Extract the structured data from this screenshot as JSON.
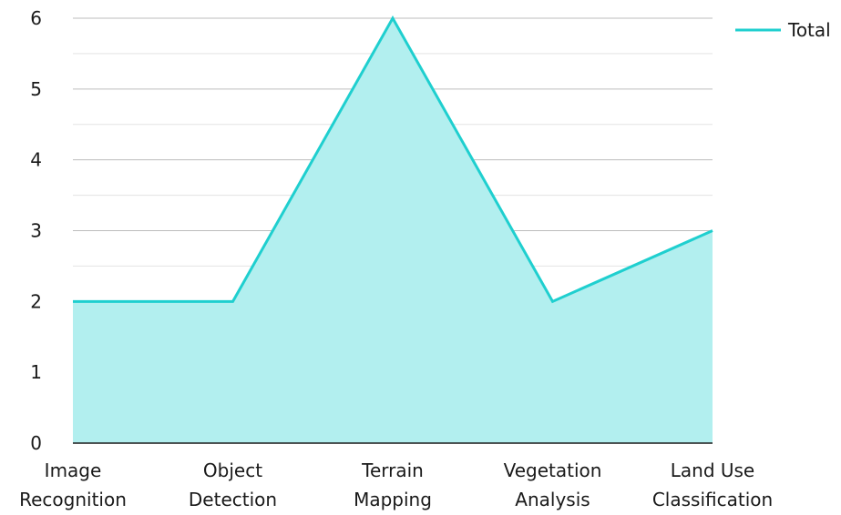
{
  "chart_data": {
    "type": "area",
    "categories": [
      [
        "Image",
        "Recognition"
      ],
      [
        "Object",
        "Detection"
      ],
      [
        "Terrain",
        "Mapping"
      ],
      [
        "Vegetation",
        "Analysis"
      ],
      [
        "Land Use",
        "Classification"
      ]
    ],
    "series": [
      {
        "name": "Total",
        "values": [
          2,
          2,
          6,
          2,
          3
        ]
      }
    ],
    "ylim": [
      0,
      6
    ],
    "yticks": [
      0,
      1,
      2,
      3,
      4,
      5,
      6
    ],
    "grid": true,
    "legend_position": "top-right",
    "colors": {
      "line": "#1FCFCF",
      "fill": "#B2EFEF",
      "grid_major": "#bdbdbd",
      "grid_minor": "#e3e3e3",
      "axis": "#1a1a1a",
      "text": "#1a1a1a"
    }
  }
}
